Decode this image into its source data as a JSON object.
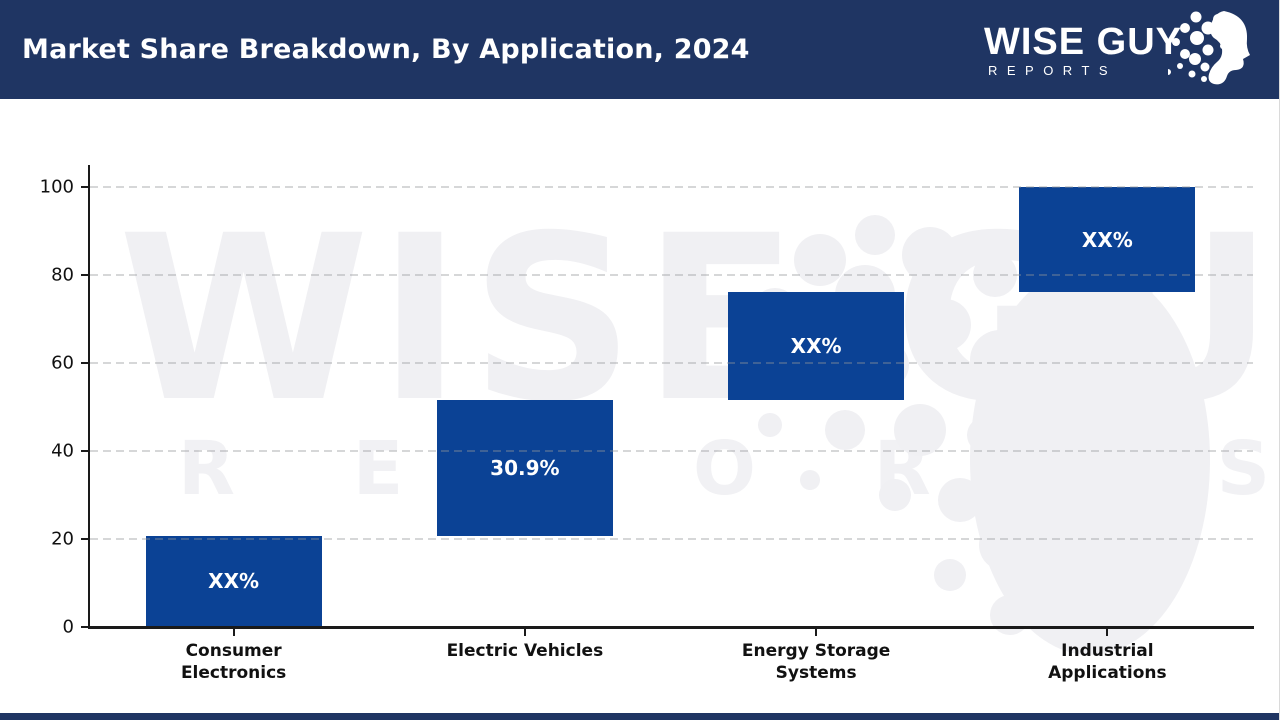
{
  "header": {
    "title": "Market Share Breakdown, By Application, 2024",
    "logo_line1": "WISE GUY",
    "logo_line2": "REPORTS"
  },
  "watermark": {
    "line1": "WISE GUY",
    "line2": "R E P O R T S"
  },
  "icons": {
    "logo_face": "wiseguy-dotted-face-profile",
    "watermark_face": "wiseguy-dotted-face-profile-large"
  },
  "colors": {
    "header_bg": "#1f3563",
    "footer_bg": "#1f3563",
    "bar": "#0b4295",
    "bar_label_text": "#ffffff",
    "axis": "#1a1a1a",
    "grid": "#d9dadc",
    "watermark": "#f0f0f3"
  },
  "chart_data": {
    "type": "bar",
    "subtype": "waterfall",
    "title": "Market Share Breakdown, By Application, 2024",
    "xlabel": "",
    "ylabel": "",
    "ylim": [
      0,
      100
    ],
    "yticks": [
      0,
      20,
      40,
      60,
      80,
      100
    ],
    "grid": "horizontal-dashed-over-bars",
    "legend": "none",
    "categories": [
      "Consumer Electronics",
      "Electric Vehicles",
      "Energy Storage Systems",
      "Industrial Applications"
    ],
    "category_lines": [
      [
        "Consumer",
        "Electronics"
      ],
      [
        "Electric Vehicles"
      ],
      [
        "Energy Storage",
        "Systems"
      ],
      [
        "Industrial",
        "Applications"
      ]
    ],
    "bars": [
      {
        "category": "Consumer Electronics",
        "start": 0,
        "end": 20.7,
        "value_label": "XX%"
      },
      {
        "category": "Electric Vehicles",
        "start": 20.7,
        "end": 51.6,
        "value_label": "30.9%"
      },
      {
        "category": "Energy Storage Systems",
        "start": 51.6,
        "end": 76.1,
        "value_label": "XX%"
      },
      {
        "category": "Industrial Applications",
        "start": 76.1,
        "end": 100,
        "value_label": "XX%"
      }
    ]
  }
}
